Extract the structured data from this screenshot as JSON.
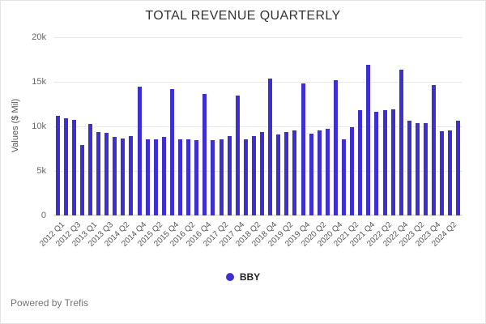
{
  "page": {
    "footer": "Powered by Trefis"
  },
  "legend": {
    "label": "BBY",
    "color": "#3d2fd1"
  },
  "chart_data": {
    "type": "bar",
    "title": "TOTAL REVENUE QUARTERLY",
    "xlabel": "",
    "ylabel": "Values ($ Mil)",
    "units": "$ Mil",
    "ylim": [
      0,
      20000
    ],
    "grid": true,
    "legend_position": "bottom",
    "bar_color": "#3d2fd1",
    "series_name": "BBY",
    "y_ticks": [
      {
        "label": "0",
        "value": 0
      },
      {
        "label": "5k",
        "value": 5000
      },
      {
        "label": "10k",
        "value": 10000
      },
      {
        "label": "15k",
        "value": 15000
      },
      {
        "label": "20k",
        "value": 20000
      }
    ],
    "x_ticks": [
      {
        "label": "2012 Q1",
        "index": 0
      },
      {
        "label": "2012 Q3",
        "index": 2
      },
      {
        "label": "2013 Q1",
        "index": 4
      },
      {
        "label": "2013 Q3",
        "index": 6
      },
      {
        "label": "2014 Q2",
        "index": 8
      },
      {
        "label": "2014 Q4",
        "index": 10
      },
      {
        "label": "2015 Q2",
        "index": 12
      },
      {
        "label": "2015 Q4",
        "index": 14
      },
      {
        "label": "2016 Q2",
        "index": 16
      },
      {
        "label": "2016 Q4",
        "index": 18
      },
      {
        "label": "2017 Q2",
        "index": 20
      },
      {
        "label": "2017 Q4",
        "index": 22
      },
      {
        "label": "2018 Q2",
        "index": 24
      },
      {
        "label": "2018 Q4",
        "index": 26
      },
      {
        "label": "2019 Q2",
        "index": 28
      },
      {
        "label": "2019 Q4",
        "index": 30
      },
      {
        "label": "2020 Q2",
        "index": 32
      },
      {
        "label": "2020 Q4",
        "index": 34
      },
      {
        "label": "2021 Q2",
        "index": 36
      },
      {
        "label": "2021 Q4",
        "index": 38
      },
      {
        "label": "2022 Q2",
        "index": 40
      },
      {
        "label": "2022 Q4",
        "index": 42
      },
      {
        "label": "2023 Q2",
        "index": 44
      },
      {
        "label": "2023 Q4",
        "index": 46
      },
      {
        "label": "2024 Q2",
        "index": 48
      }
    ],
    "values": [
      11160,
      10900,
      10750,
      7900,
      10300,
      9380,
      9270,
      8800,
      8640,
      8900,
      14470,
      8560,
      8530,
      8820,
      14210,
      8560,
      8530,
      8450,
      13620,
      8440,
      8530,
      8950,
      13480,
      8530,
      8940,
      9320,
      15360,
      9110,
      9380,
      9590,
      14800,
      9140,
      9540,
      9760,
      15200,
      8560,
      9910,
      11850,
      16940,
      11640,
      11850,
      11910,
      16370,
      10650,
      10330,
      10340,
      14650,
      9470,
      9580,
      10600
    ]
  }
}
